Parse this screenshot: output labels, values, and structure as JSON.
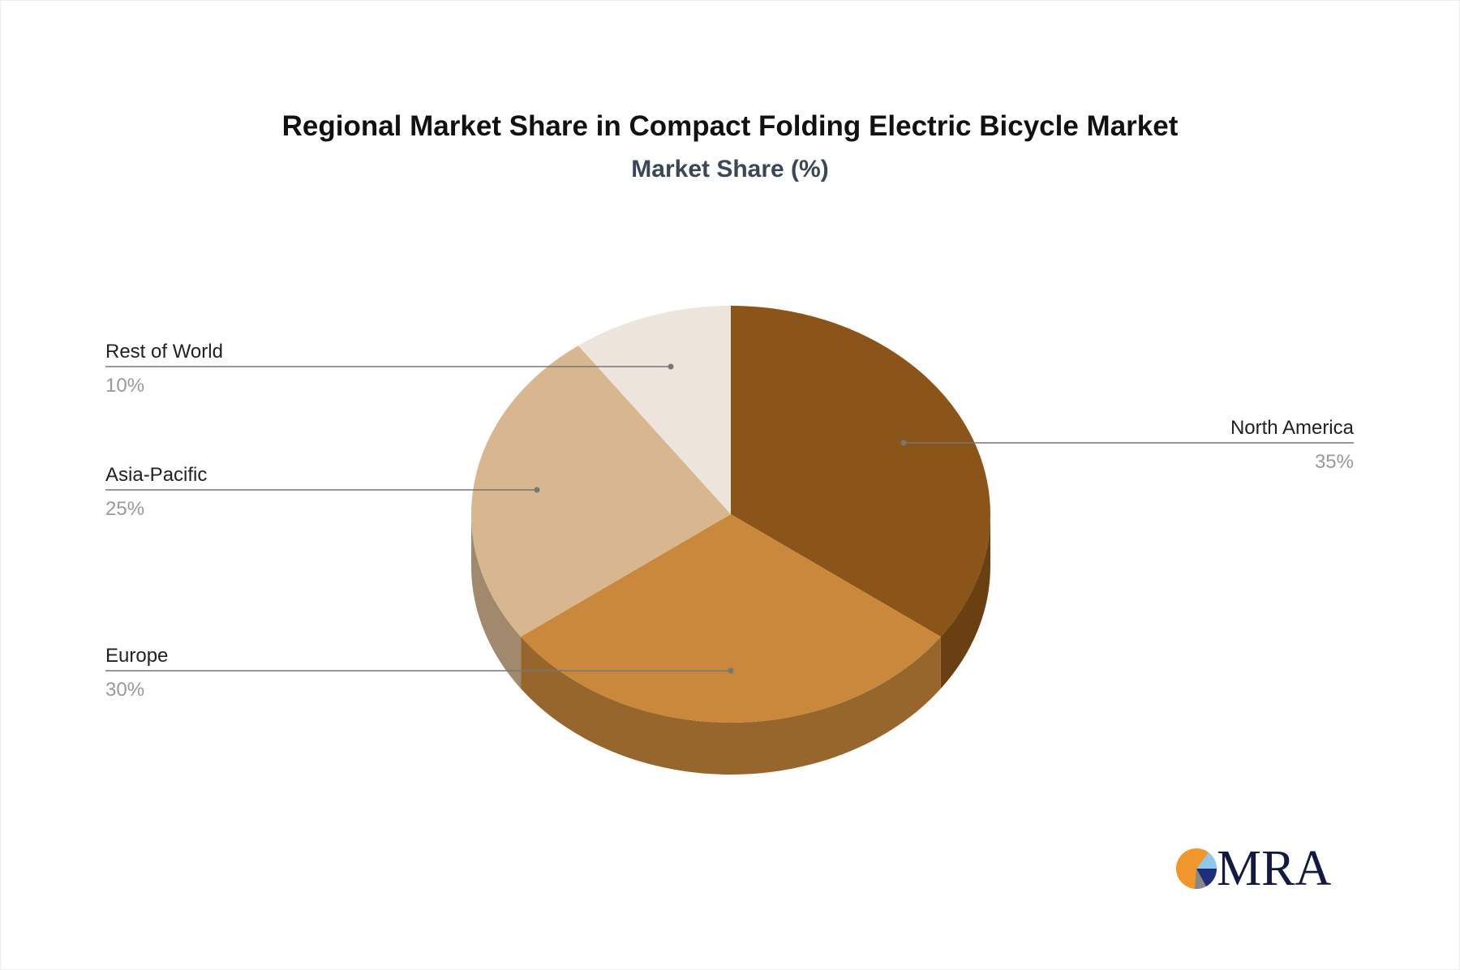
{
  "chart_data": {
    "type": "pie",
    "title": "Regional Market Share in Compact Folding Electric Bicycle Market",
    "subtitle": "Market Share (%)",
    "slices": [
      {
        "label": "North America",
        "value": 35,
        "display": "35%",
        "color": "#8b5519",
        "side_color": "#6a4013"
      },
      {
        "label": "Europe",
        "value": 30,
        "display": "30%",
        "color": "#c9883c",
        "side_color": "#97662c"
      },
      {
        "label": "Asia-Pacific",
        "value": 25,
        "display": "25%",
        "color": "#d7b690",
        "side_color": "#a0896c"
      },
      {
        "label": "Rest of World",
        "value": 10,
        "display": "10%",
        "color": "#ede4db",
        "side_color": "#b9afa5"
      }
    ],
    "style": "3d",
    "legend": "callout labels"
  },
  "logo": {
    "text": "MRA"
  }
}
